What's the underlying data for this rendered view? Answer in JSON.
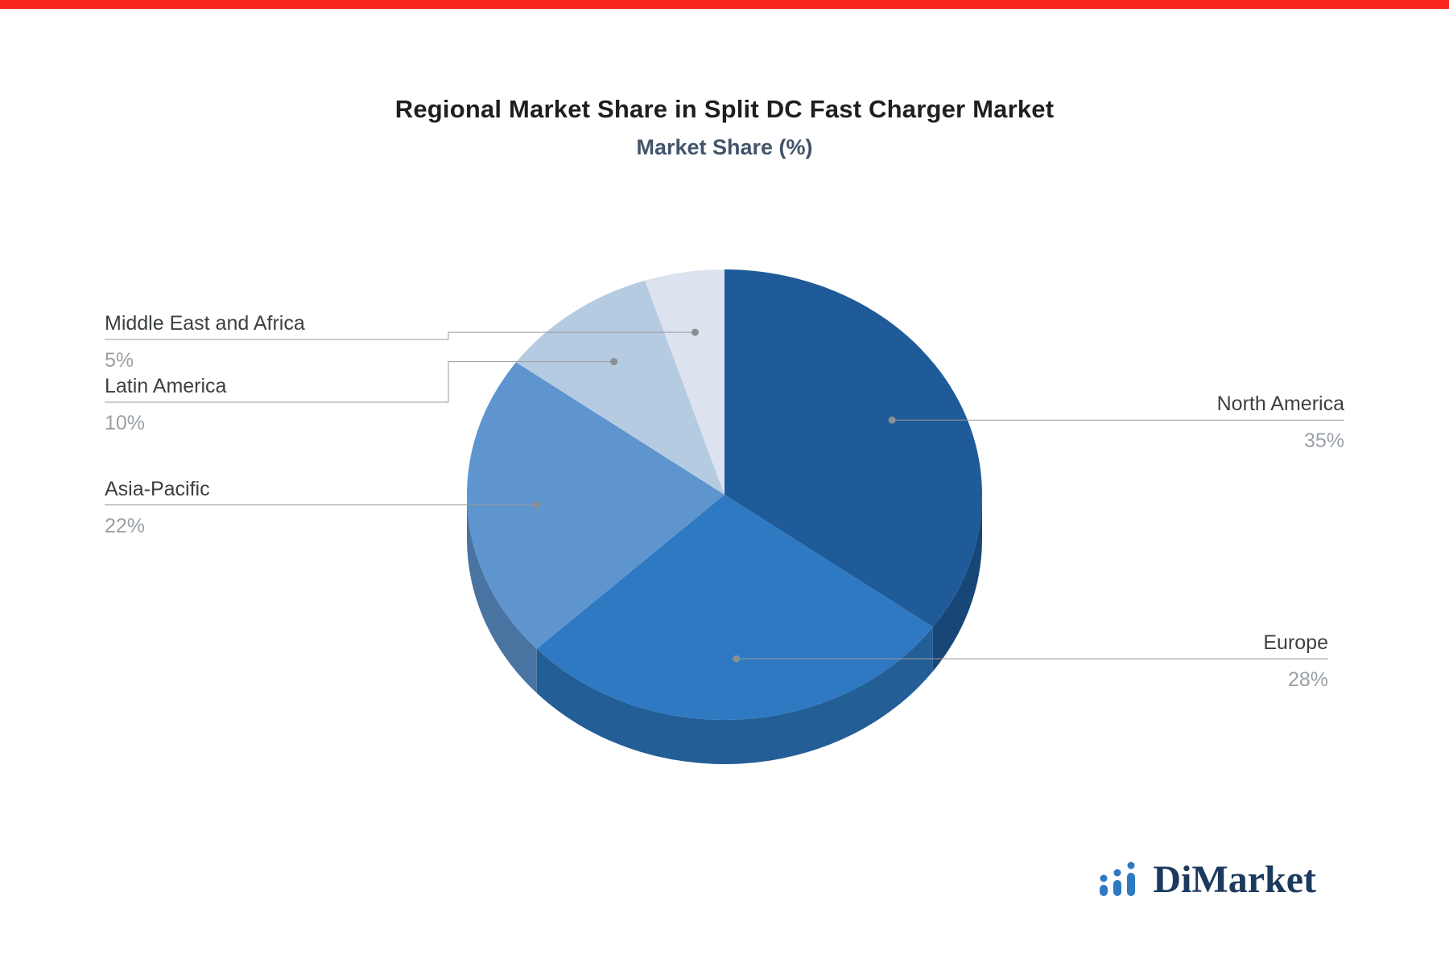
{
  "accents": {
    "top_bar_color": "#f8261b"
  },
  "chart_data": {
    "type": "pie",
    "title": "Regional Market Share in Split DC Fast Charger Market",
    "subtitle": "Market Share (%)",
    "unit": "%",
    "labels": [
      "North America",
      "Europe",
      "Asia-Pacific",
      "Latin America",
      "Middle East and Africa"
    ],
    "values": [
      35,
      28,
      22,
      10,
      5
    ],
    "display_values": [
      "35%",
      "28%",
      "22%",
      "10%",
      "5%"
    ],
    "colors": [
      "#1f5b99",
      "#2e79c2",
      "#5e95cf",
      "#b5cbe2",
      "#dde3ee"
    ],
    "start_angle_deg": 0,
    "direction": "clockwise",
    "effect": "3d",
    "legend_position": "none",
    "label_text_color": "#3c4043",
    "value_text_color": "#9aa0a6",
    "leader_line_color": "#9a9a9a"
  },
  "logo": {
    "text": "DiMarket",
    "text_color": "#1b3a5e",
    "icon": "bar-chart-icon",
    "icon_color": "#2e79c2"
  }
}
